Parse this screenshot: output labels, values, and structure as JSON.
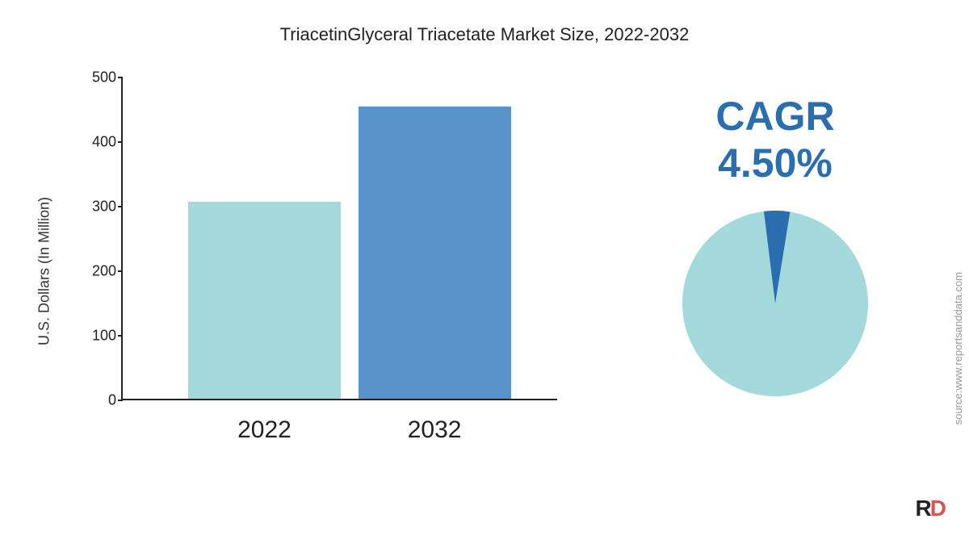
{
  "title": "TriacetinGlyceral Triacetate Market Size, 2022-2032",
  "bar_chart": {
    "type": "bar",
    "y_axis_label": "U.S. Dollars (In Million)",
    "ylim": [
      0,
      500
    ],
    "ytick_step": 100,
    "yticks": [
      0,
      100,
      200,
      300,
      400,
      500
    ],
    "categories": [
      "2022",
      "2032"
    ],
    "values": [
      305,
      452
    ],
    "bar_colors": [
      "#a3d9db",
      "#5a93c9"
    ],
    "bar_width_pct": 35,
    "bar_positions_pct": [
      15,
      54
    ],
    "axis_color": "#222222",
    "tick_fontsize": 18,
    "xlabel_fontsize": 30,
    "ylabel_fontsize": 18
  },
  "cagr": {
    "label": "CAGR",
    "value": "4.50%",
    "color": "#2a6eb0",
    "fontsize": 50
  },
  "pie": {
    "type": "pie",
    "slice_pct": 4.5,
    "slice_color": "#2a6eb0",
    "rest_color": "#a3d9db",
    "diameter": 230,
    "start_angle_deg": -7
  },
  "source": "source:www.reportsanddata.com",
  "logo": {
    "r": "R",
    "d": "D"
  },
  "background_color": "#ffffff"
}
